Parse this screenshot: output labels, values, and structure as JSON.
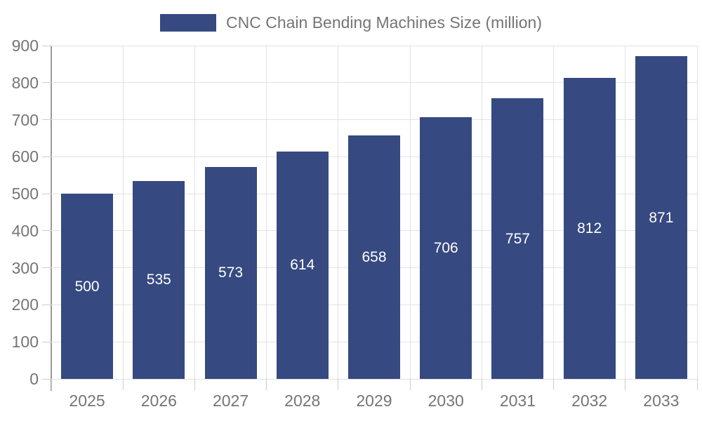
{
  "chart_data": {
    "type": "bar",
    "title": "",
    "legend": "CNC Chain Bending Machines Size (million)",
    "legend_position": "top",
    "categories": [
      "2025",
      "2026",
      "2027",
      "2028",
      "2029",
      "2030",
      "2031",
      "2032",
      "2033"
    ],
    "values": [
      500,
      535,
      573,
      614,
      658,
      706,
      757,
      812,
      871
    ],
    "xlabel": "",
    "ylabel": "",
    "ylim": [
      0,
      900
    ],
    "ytick_step": 100,
    "grid": true,
    "bar_color": "#364981",
    "bar_label_color": "#ffffff",
    "axis_text_color": "#757575",
    "gridline_color": "#e2e2e2",
    "tick_color": "#cccccc",
    "axis_line_color": "#9b9b9b",
    "background_color": "#ffffff"
  }
}
